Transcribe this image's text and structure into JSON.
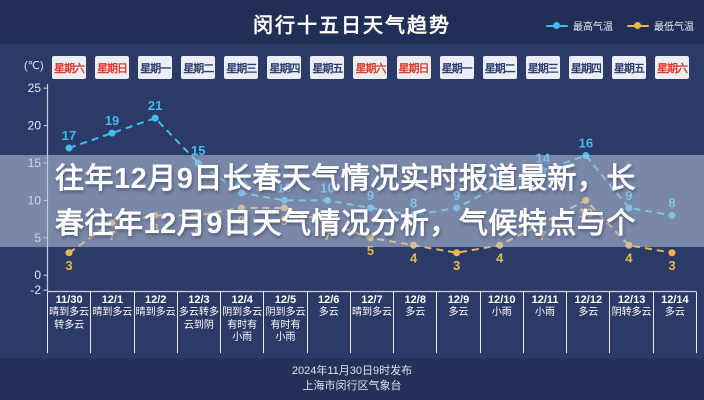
{
  "header": {
    "title": "闵行十五日天气趋势",
    "unit_label": "(℃)",
    "legend": [
      {
        "label": "最高气温",
        "color": "#3fbdeb"
      },
      {
        "label": "最低气温",
        "color": "#e8b84e"
      }
    ]
  },
  "weekdays": [
    {
      "label": "星期六",
      "weekend": true
    },
    {
      "label": "星期日",
      "weekend": true
    },
    {
      "label": "星期一",
      "weekend": false
    },
    {
      "label": "星期二",
      "weekend": false
    },
    {
      "label": "星期三",
      "weekend": false
    },
    {
      "label": "星期四",
      "weekend": false
    },
    {
      "label": "星期五",
      "weekend": false
    },
    {
      "label": "星期六",
      "weekend": true
    },
    {
      "label": "星期日",
      "weekend": true
    },
    {
      "label": "星期一",
      "weekend": false
    },
    {
      "label": "星期二",
      "weekend": false
    },
    {
      "label": "星期三",
      "weekend": false
    },
    {
      "label": "星期四",
      "weekend": false
    },
    {
      "label": "星期五",
      "weekend": false
    },
    {
      "label": "星期六",
      "weekend": true
    }
  ],
  "overlay": {
    "line1": "往年12月9日长春天气情况实时报道最新，长",
    "line2": "春往年12月9日天气情况分析，气候特点与个"
  },
  "chart_data": {
    "type": "line",
    "title": "闵行十五日天气趋势",
    "x": [
      "11/30",
      "12/1",
      "12/2",
      "12/3",
      "12/4",
      "12/5",
      "12/6",
      "12/7",
      "12/8",
      "12/9",
      "12/10",
      "12/11",
      "12/12",
      "12/13",
      "12/14"
    ],
    "series": [
      {
        "name": "最高气温",
        "color": "#3fbdeb",
        "values": [
          17,
          19,
          21,
          15,
          11,
          10,
          10,
          9,
          8,
          9,
          12,
          14,
          16,
          9,
          8
        ]
      },
      {
        "name": "最低气温",
        "color": "#e8b84e",
        "values": [
          3,
          7,
          8,
          8,
          9,
          9,
          7,
          5,
          4,
          3,
          4,
          7,
          10,
          4,
          3
        ]
      }
    ],
    "ylabel": "(℃)",
    "yticks": [
      25,
      20,
      15,
      10,
      5,
      0,
      -2
    ],
    "ylim": [
      -2,
      27
    ],
    "grid": false,
    "line_style": "dashed",
    "legend_position": "top-right"
  },
  "forecast": [
    {
      "date": "11/30",
      "weather": "晴到多云\n转多云"
    },
    {
      "date": "12/1",
      "weather": "晴到多云"
    },
    {
      "date": "12/2",
      "weather": "晴到多云"
    },
    {
      "date": "12/3",
      "weather": "多云转多\n云到阴"
    },
    {
      "date": "12/4",
      "weather": "阴到多云\n有时有\n小雨"
    },
    {
      "date": "12/5",
      "weather": "阴到多云\n有时有\n小雨"
    },
    {
      "date": "12/6",
      "weather": "多云"
    },
    {
      "date": "12/7",
      "weather": "晴到多云"
    },
    {
      "date": "12/8",
      "weather": "多云"
    },
    {
      "date": "12/9",
      "weather": "多云"
    },
    {
      "date": "12/10",
      "weather": "小雨"
    },
    {
      "date": "12/11",
      "weather": "小雨"
    },
    {
      "date": "12/12",
      "weather": "多云"
    },
    {
      "date": "12/13",
      "weather": "阴转多云"
    },
    {
      "date": "12/14",
      "weather": "多云"
    }
  ],
  "footer": {
    "line1": "2024年11月30日9时发布",
    "line2": "上海市闵行区气象台"
  }
}
